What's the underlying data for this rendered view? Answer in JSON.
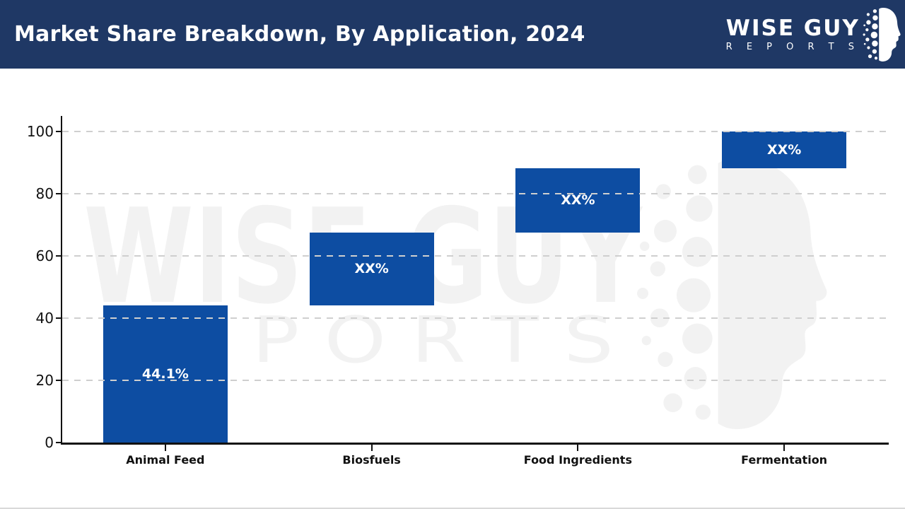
{
  "header": {
    "title": "Market Share Breakdown, By Application, 2024",
    "logo": {
      "wordmark": "WISE GUY",
      "reports": "R E P O R T S"
    }
  },
  "watermark": {
    "line1": "WISE GUY",
    "line2": "R E P O R T S"
  },
  "colors": {
    "header_bg": "#1f3865",
    "bar": "#0d4da2",
    "bar_label": "#ffffff",
    "axis": "#111111",
    "grid": "#cfcfcf",
    "watermark": "#f2f2f2"
  },
  "chart_data": {
    "type": "bar",
    "subtype": "waterfall",
    "title": "Market Share Breakdown, By Application, 2024",
    "categories": [
      "Animal Feed",
      "Biosfuels",
      "Food Ingredients",
      "Fermentation"
    ],
    "segments": [
      {
        "category": "Animal Feed",
        "start": 0,
        "end": 44.1,
        "label": "44.1%"
      },
      {
        "category": "Biosfuels",
        "start": 44.1,
        "end": 67.5,
        "label": "XX%"
      },
      {
        "category": "Food Ingredients",
        "start": 67.5,
        "end": 88.2,
        "label": "XX%"
      },
      {
        "category": "Fermentation",
        "start": 88.2,
        "end": 100,
        "label": "XX%"
      }
    ],
    "ylim": [
      0,
      100
    ],
    "yticks": [
      0,
      20,
      40,
      60,
      80,
      100
    ],
    "xlabel": "",
    "ylabel": "",
    "legend": "none",
    "grid": "dashed-horizontal"
  }
}
